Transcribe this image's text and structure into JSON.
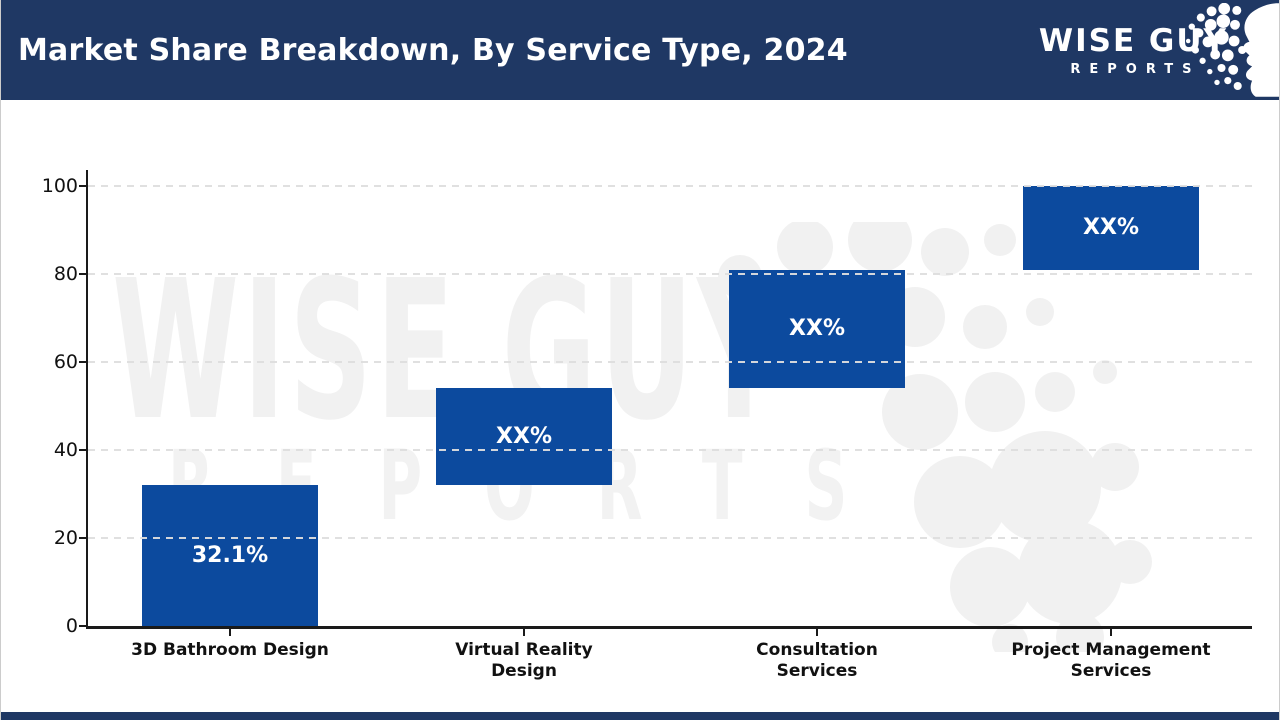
{
  "header": {
    "title": "Market Share Breakdown, By Service Type, 2024",
    "logo": {
      "brand": "WISE GUY",
      "sub": "REPORTS"
    }
  },
  "watermark": {
    "brand": "WISE GUY",
    "sub": "REPORTS"
  },
  "colors": {
    "header_bg": "#1f3864",
    "footer_bg": "#1f3864",
    "bar": "#0c4a9e",
    "bar_label": "#ffffff",
    "axis": "#1a1a1a",
    "grid": "#dedede",
    "tick_text": "#111111",
    "watermark": "#f1f1f1"
  },
  "chart_data": {
    "type": "bar",
    "subtype": "waterfall",
    "title": "Market Share Breakdown, By Service Type, 2024",
    "categories": [
      "3D Bathroom Design",
      "Virtual Reality\nDesign",
      "Consultation\nServices",
      "Project Management\nServices"
    ],
    "segments": [
      {
        "category": "3D Bathroom Design",
        "start": 0,
        "end": 32.1,
        "label": "32.1%"
      },
      {
        "category": "Virtual Reality Design",
        "start": 32.1,
        "end": 54.2,
        "label": "XX%"
      },
      {
        "category": "Consultation Services",
        "start": 54.2,
        "end": 81.0,
        "label": "XX%"
      },
      {
        "category": "Project Management Services",
        "start": 81.0,
        "end": 100.0,
        "label": "XX%"
      }
    ],
    "yticks": [
      0,
      20,
      40,
      60,
      80,
      100
    ],
    "ylim": [
      0,
      100
    ],
    "xlabel": "",
    "ylabel": "",
    "grid": "horizontal-dashed",
    "legend": "none"
  }
}
